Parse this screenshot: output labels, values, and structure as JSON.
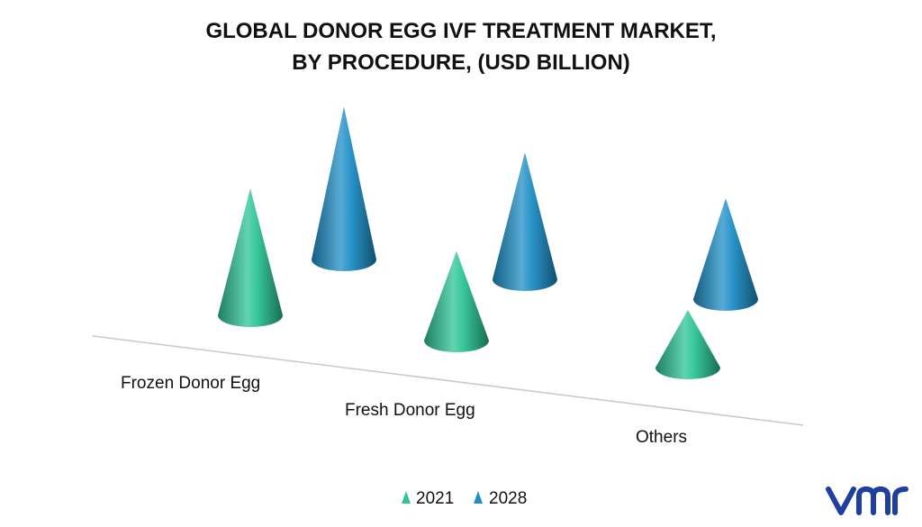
{
  "chart_data": {
    "type": "bar",
    "subtype": "3d-cone",
    "title_lines": [
      "GLOBAL DONOR EGG IVF TREATMENT MARKET,",
      "BY PROCEDURE, (USD BILLION)"
    ],
    "categories": [
      "Frozen Donor Egg",
      "Fresh Donor Egg",
      "Others"
    ],
    "series": [
      {
        "name": "2021",
        "color": "#2ec495",
        "values": [
          2.2,
          1.55,
          1.0
        ]
      },
      {
        "name": "2028",
        "color": "#1f8fc7",
        "values": [
          2.65,
          2.2,
          1.75
        ]
      }
    ],
    "axes_visible": false,
    "grid": false,
    "legend_position": "bottom-center"
  },
  "logo": {
    "text": "vmr",
    "color": "#1f3f9f",
    "icon": "vmr-logo"
  }
}
